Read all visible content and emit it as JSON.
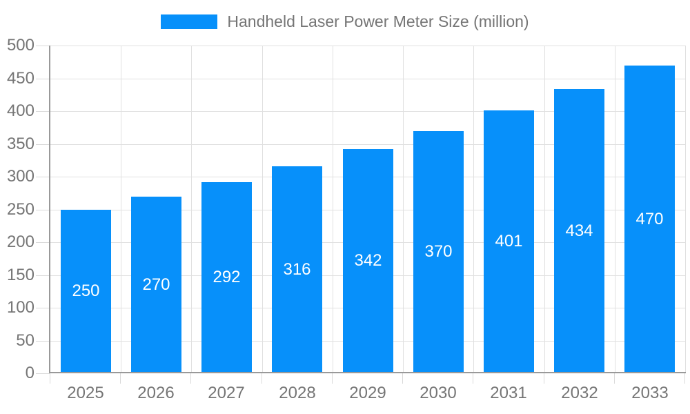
{
  "legend": {
    "label": "Handheld Laser Power Meter Size (million)"
  },
  "colors": {
    "bar": "#0790FA",
    "bar_label": "#FFFFFF",
    "axis_text": "#757575",
    "axis_line": "#999999",
    "gridline": "#E0E0E0",
    "tick": "#D9D9D9",
    "background": "#FFFFFF"
  },
  "chart_data": {
    "type": "bar",
    "title": "Handheld Laser Power Meter Size (million)",
    "categories": [
      "2025",
      "2026",
      "2027",
      "2028",
      "2029",
      "2030",
      "2031",
      "2032",
      "2033"
    ],
    "series": [
      {
        "name": "Handheld Laser Power Meter Size (million)",
        "values": [
          250,
          270,
          292,
          316,
          342,
          370,
          401,
          434,
          470
        ]
      }
    ],
    "xlabel": "",
    "ylabel": "",
    "ylim": [
      0,
      500
    ],
    "ytick_step": 50,
    "ytick_labels": [
      "0",
      "50",
      "100",
      "150",
      "200",
      "250",
      "300",
      "350",
      "400",
      "450",
      "500"
    ],
    "grid": true,
    "legend_position": "top-center",
    "bar_label_position": "inside-center"
  }
}
